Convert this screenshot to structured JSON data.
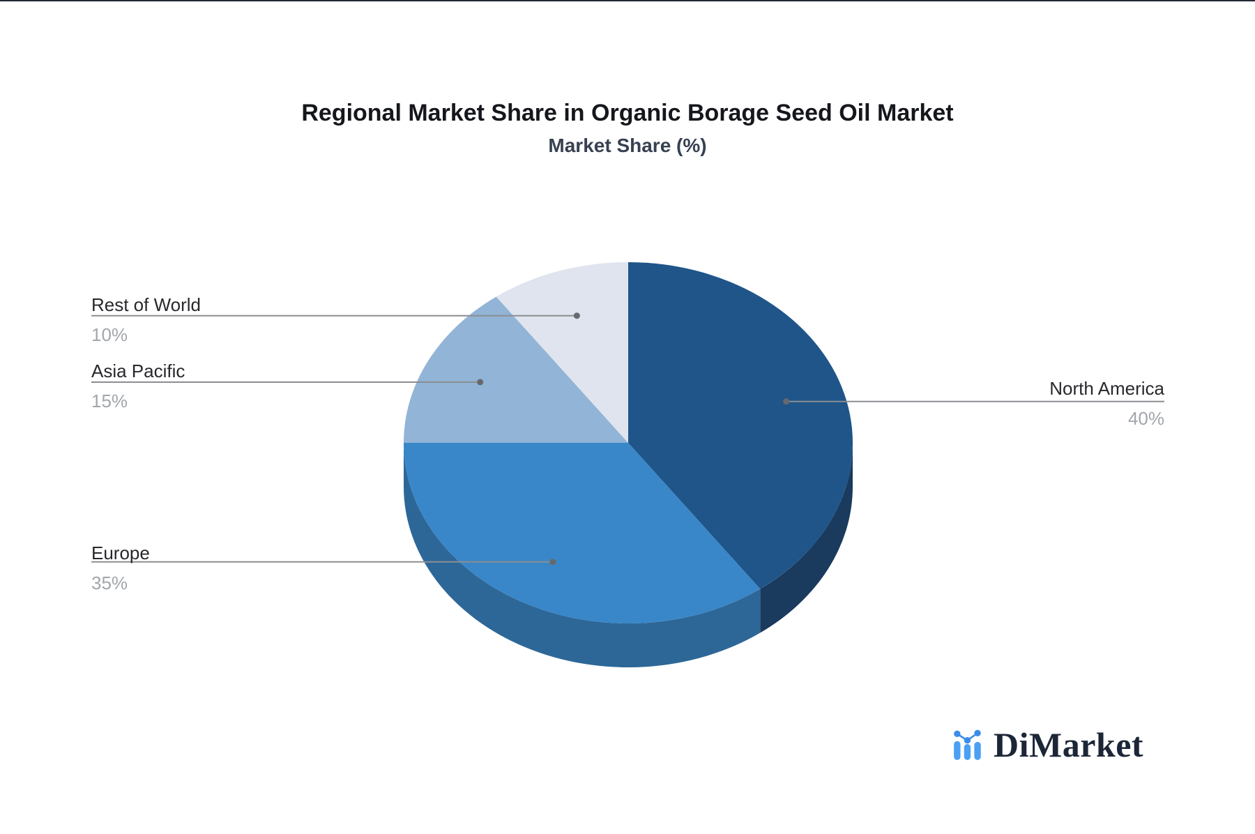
{
  "page": {
    "title": "Regional Market Share in Organic Borage Seed Oil Market",
    "subtitle": "Market Share (%)"
  },
  "chart_data": {
    "type": "pie",
    "style": "3d",
    "title": "Regional Market Share in Organic Borage Seed Oil Market",
    "subtitle": "Market Share (%)",
    "unit": "%",
    "start_angle_deg": 0,
    "direction": "clockwise",
    "total": 100,
    "slices": [
      {
        "label": "North America",
        "value": 40,
        "pct_label": "40%",
        "color": "#1f5589",
        "side_color": "#1a3a5e",
        "label_side": "right"
      },
      {
        "label": "Europe",
        "value": 35,
        "pct_label": "35%",
        "color": "#3987c8",
        "side_color": "#2d6798",
        "label_side": "left"
      },
      {
        "label": "Asia Pacific",
        "value": 15,
        "pct_label": "15%",
        "color": "#92b4d6",
        "side_color": "#87a9cd",
        "label_side": "left"
      },
      {
        "label": "Rest of World",
        "value": 10,
        "pct_label": "10%",
        "color": "#dfe4ee",
        "side_color": "#cdd5e2",
        "label_side": "left"
      }
    ],
    "legend_position": "callouts",
    "leader_line_color": "#8b8e92",
    "leader_dot_color": "#66696d",
    "label_text_color": "#27282c",
    "pct_text_color": "#a2a6ac"
  },
  "branding": {
    "logo_text": "DiMarket",
    "logo_icon": "bar-chart-with-trendline-icon",
    "logo_text_color": "#1d2637",
    "logo_accent_color": "#4ba0f4",
    "logo_accent_dark": "#3b8de9"
  }
}
